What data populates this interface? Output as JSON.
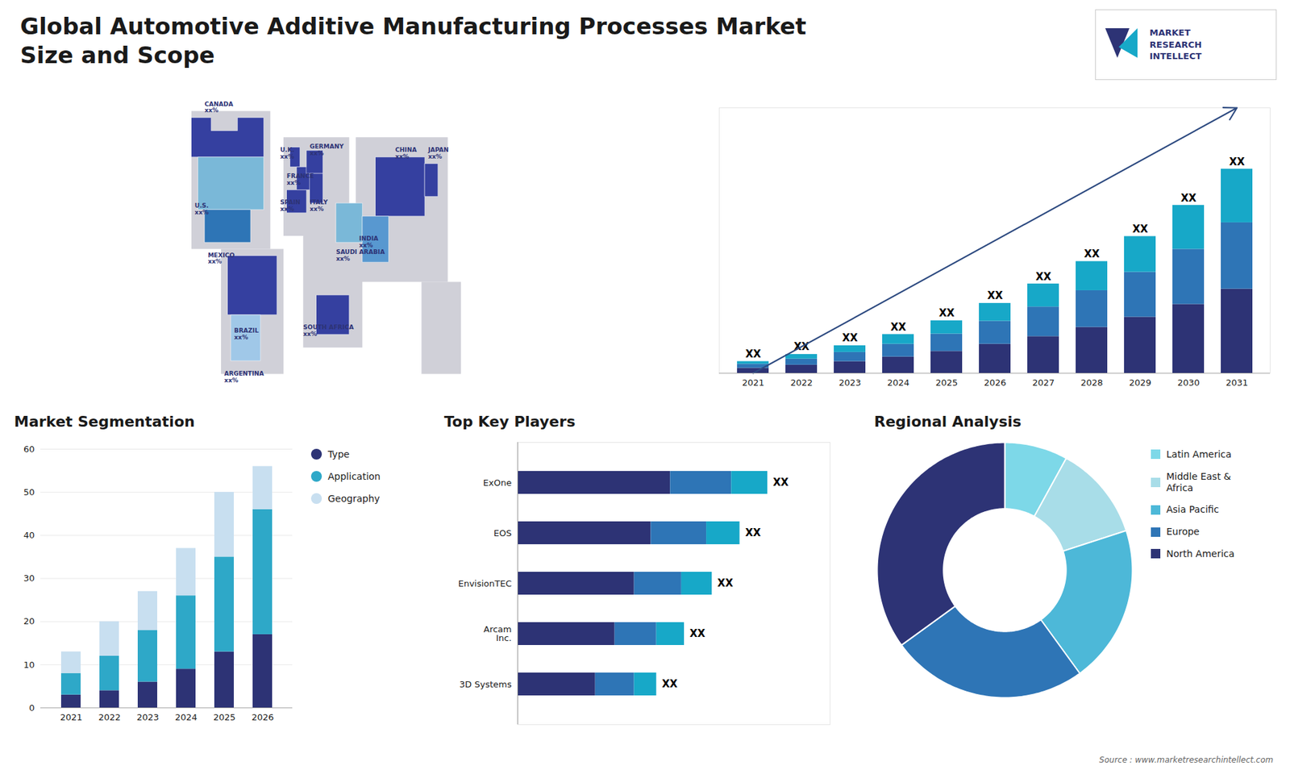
{
  "title": "Global Automotive Additive Manufacturing Processes Market\nSize and Scope",
  "logo_text": "MARKET\nRESEARCH\nINTELLECT",
  "source": "Source : www.marketresearchintellect.com",
  "chart_data": [
    {
      "type": "map",
      "land_color": "#d0d0d8",
      "land": [
        [
          [
            0.04,
            0.48
          ],
          [
            0.28,
            0.48
          ],
          [
            0.28,
            0.9
          ],
          [
            0.04,
            0.9
          ]
        ],
        [
          [
            0.13,
            0.1
          ],
          [
            0.32,
            0.1
          ],
          [
            0.32,
            0.48
          ],
          [
            0.13,
            0.48
          ]
        ],
        [
          [
            0.32,
            0.52
          ],
          [
            0.52,
            0.52
          ],
          [
            0.52,
            0.82
          ],
          [
            0.32,
            0.82
          ]
        ],
        [
          [
            0.38,
            0.18
          ],
          [
            0.56,
            0.18
          ],
          [
            0.56,
            0.52
          ],
          [
            0.38,
            0.52
          ]
        ],
        [
          [
            0.54,
            0.38
          ],
          [
            0.82,
            0.38
          ],
          [
            0.82,
            0.82
          ],
          [
            0.54,
            0.82
          ]
        ],
        [
          [
            0.74,
            0.1
          ],
          [
            0.86,
            0.1
          ],
          [
            0.86,
            0.38
          ],
          [
            0.74,
            0.38
          ]
        ]
      ],
      "label_color": "#2d3375",
      "regions": [
        {
          "name": "CANADA",
          "color": "#3540a0",
          "value_label": "xx%",
          "label_at": [
            0.08,
            0.93
          ],
          "shape": [
            [
              0.04,
              0.76
            ],
            [
              0.26,
              0.76
            ],
            [
              0.26,
              0.88
            ],
            [
              0.18,
              0.88
            ],
            [
              0.18,
              0.84
            ],
            [
              0.1,
              0.84
            ],
            [
              0.1,
              0.88
            ],
            [
              0.04,
              0.88
            ]
          ]
        },
        {
          "name": "U.S.",
          "color": "#7ab8d8",
          "value_label": "xx%",
          "label_at": [
            0.05,
            0.62
          ],
          "shape": [
            [
              0.06,
              0.6
            ],
            [
              0.26,
              0.6
            ],
            [
              0.26,
              0.76
            ],
            [
              0.06,
              0.76
            ]
          ]
        },
        {
          "name": "MEXICO",
          "color": "#2e75b6",
          "value_label": "xx%",
          "label_at": [
            0.09,
            0.47
          ],
          "shape": [
            [
              0.08,
              0.5
            ],
            [
              0.22,
              0.5
            ],
            [
              0.22,
              0.6
            ],
            [
              0.08,
              0.6
            ]
          ]
        },
        {
          "name": "BRAZIL",
          "color": "#3540a0",
          "value_label": "xx%",
          "label_at": [
            0.17,
            0.24
          ],
          "shape": [
            [
              0.15,
              0.28
            ],
            [
              0.3,
              0.28
            ],
            [
              0.3,
              0.46
            ],
            [
              0.15,
              0.46
            ]
          ]
        },
        {
          "name": "ARGENTINA",
          "color": "#a0c8e8",
          "value_label": "xx%",
          "label_at": [
            0.14,
            0.11
          ],
          "shape": [
            [
              0.16,
              0.14
            ],
            [
              0.25,
              0.14
            ],
            [
              0.25,
              0.28
            ],
            [
              0.16,
              0.28
            ]
          ]
        },
        {
          "name": "U.K.",
          "color": "#3540a0",
          "value_label": "xx%",
          "label_at": [
            0.31,
            0.79
          ],
          "shape": [
            [
              0.34,
              0.73
            ],
            [
              0.37,
              0.73
            ],
            [
              0.37,
              0.79
            ],
            [
              0.34,
              0.79
            ]
          ]
        },
        {
          "name": "FRANCE",
          "color": "#3540a0",
          "value_label": "xx%",
          "label_at": [
            0.33,
            0.71
          ],
          "shape": [
            [
              0.36,
              0.66
            ],
            [
              0.41,
              0.66
            ],
            [
              0.41,
              0.73
            ],
            [
              0.36,
              0.73
            ]
          ]
        },
        {
          "name": "SPAIN",
          "color": "#3540a0",
          "value_label": "xx%",
          "label_at": [
            0.31,
            0.63
          ],
          "shape": [
            [
              0.33,
              0.59
            ],
            [
              0.39,
              0.59
            ],
            [
              0.39,
              0.66
            ],
            [
              0.33,
              0.66
            ]
          ]
        },
        {
          "name": "GERMANY",
          "color": "#3540a0",
          "value_label": "xx%",
          "label_at": [
            0.4,
            0.8
          ],
          "shape": [
            [
              0.39,
              0.71
            ],
            [
              0.44,
              0.71
            ],
            [
              0.44,
              0.78
            ],
            [
              0.39,
              0.78
            ]
          ]
        },
        {
          "name": "ITALY",
          "color": "#3540a0",
          "value_label": "xx%",
          "label_at": [
            0.4,
            0.63
          ],
          "shape": [
            [
              0.4,
              0.62
            ],
            [
              0.44,
              0.62
            ],
            [
              0.44,
              0.71
            ],
            [
              0.4,
              0.71
            ]
          ]
        },
        {
          "name": "SAUDI ARABIA",
          "color": "#7ab8d8",
          "value_label": "xx%",
          "label_at": [
            0.48,
            0.48
          ],
          "shape": [
            [
              0.48,
              0.5
            ],
            [
              0.56,
              0.5
            ],
            [
              0.56,
              0.62
            ],
            [
              0.48,
              0.62
            ]
          ]
        },
        {
          "name": "SOUTH AFRICA",
          "color": "#3540a0",
          "value_label": "xx%",
          "label_at": [
            0.38,
            0.25
          ],
          "shape": [
            [
              0.42,
              0.22
            ],
            [
              0.52,
              0.22
            ],
            [
              0.52,
              0.34
            ],
            [
              0.42,
              0.34
            ]
          ]
        },
        {
          "name": "CHINA",
          "color": "#3540a0",
          "value_label": "xx%",
          "label_at": [
            0.66,
            0.79
          ],
          "shape": [
            [
              0.6,
              0.58
            ],
            [
              0.75,
              0.58
            ],
            [
              0.75,
              0.76
            ],
            [
              0.6,
              0.76
            ]
          ]
        },
        {
          "name": "INDIA",
          "color": "#5898d0",
          "value_label": "xx%",
          "label_at": [
            0.55,
            0.52
          ],
          "shape": [
            [
              0.56,
              0.44
            ],
            [
              0.64,
              0.44
            ],
            [
              0.64,
              0.58
            ],
            [
              0.56,
              0.58
            ]
          ]
        },
        {
          "name": "JAPAN",
          "color": "#3540a0",
          "value_label": "xx%",
          "label_at": [
            0.76,
            0.79
          ],
          "shape": [
            [
              0.75,
              0.64
            ],
            [
              0.79,
              0.64
            ],
            [
              0.79,
              0.74
            ],
            [
              0.75,
              0.74
            ]
          ]
        }
      ]
    },
    {
      "type": "bar",
      "stacked": true,
      "categories": [
        "2021",
        "2022",
        "2023",
        "2024",
        "2025",
        "2026",
        "2027",
        "2028",
        "2029",
        "2030",
        "2031"
      ],
      "series": [
        {
          "color": "#2d3375",
          "values": [
            1.0,
            1.6,
            2.3,
            3.2,
            4.3,
            5.7,
            7.2,
            9.0,
            11.0,
            13.5,
            16.5
          ]
        },
        {
          "color": "#2e75b6",
          "values": [
            0.8,
            1.2,
            1.8,
            2.5,
            3.4,
            4.5,
            5.8,
            7.2,
            8.8,
            10.8,
            13.0
          ]
        },
        {
          "color": "#17a8c8",
          "values": [
            0.5,
            0.9,
            1.3,
            1.9,
            2.6,
            3.5,
            4.5,
            5.7,
            7.0,
            8.6,
            10.5
          ]
        }
      ],
      "total_labels": [
        "XX",
        "XX",
        "XX",
        "XX",
        "XX",
        "XX",
        "XX",
        "XX",
        "XX",
        "XX",
        "XX"
      ],
      "ylim": [
        0,
        52
      ],
      "tick_labels": "x"
    },
    {
      "type": "bar",
      "title": "Market Segmentation",
      "stacked": true,
      "categories": [
        "2021",
        "2022",
        "2023",
        "2024",
        "2025",
        "2026"
      ],
      "series": [
        {
          "name": "Type",
          "color": "#2d3375",
          "values": [
            3,
            4,
            6,
            9,
            13,
            17
          ]
        },
        {
          "name": "Application",
          "color": "#2ea8c8",
          "values": [
            5,
            8,
            12,
            17,
            22,
            29
          ]
        },
        {
          "name": "Geography",
          "color": "#c8dff0",
          "values": [
            5,
            8,
            9,
            11,
            15,
            10
          ]
        }
      ],
      "ylim": [
        0,
        60
      ],
      "yticks": [
        0,
        10,
        20,
        30,
        40,
        50,
        60
      ],
      "grid": true,
      "legend": "right"
    },
    {
      "type": "bar",
      "title": "Top Key Players",
      "orientation": "horizontal",
      "stacked": true,
      "categories": [
        "ExOne",
        "EOS",
        "EnvisionTEC",
        "Arcam\nInc.",
        "3D Systems"
      ],
      "series": [
        {
          "color": "#2d3375",
          "values": [
            55,
            48,
            42,
            35,
            28
          ]
        },
        {
          "color": "#2e75b6",
          "values": [
            22,
            20,
            17,
            15,
            14
          ]
        },
        {
          "color": "#17a8c8",
          "values": [
            13,
            12,
            11,
            10,
            8
          ]
        }
      ],
      "total_labels": [
        "XX",
        "XX",
        "XX",
        "XX",
        "XX"
      ],
      "xlim": [
        0,
        112.5
      ],
      "tick_labels": "y"
    },
    {
      "type": "donut",
      "title": "Regional Analysis",
      "categories": [
        "Latin America",
        "Middle East &\nAfrica",
        "Asia Pacific",
        "Europe",
        "North America"
      ],
      "values": [
        8,
        12,
        20,
        25,
        35
      ],
      "colors": [
        "#7dd8e8",
        "#a8dde8",
        "#4db8d8",
        "#2e75b6",
        "#2d3375"
      ],
      "legend": "right"
    }
  ]
}
